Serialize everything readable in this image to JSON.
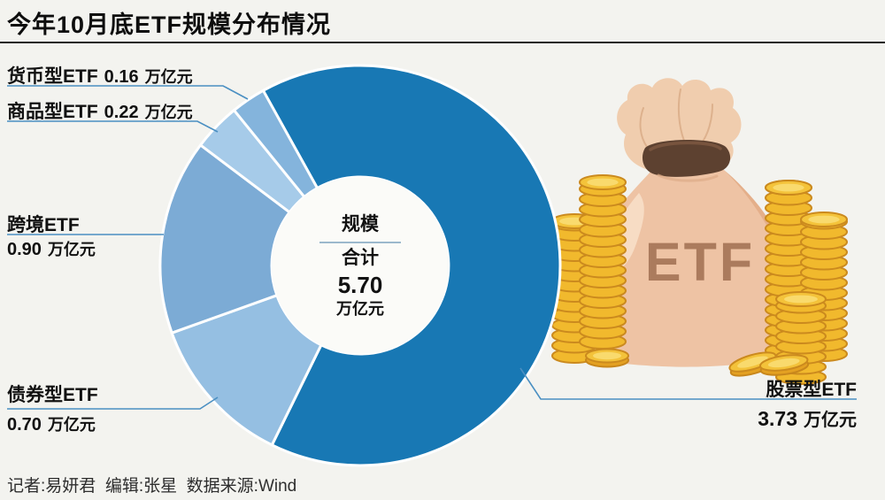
{
  "title": "今年10月底ETF规模分布情况",
  "center_label": {
    "line1": "规模",
    "line2": "合计",
    "value_text": "5.70",
    "unit": "万亿元"
  },
  "bag": {
    "text": "ETF"
  },
  "footer": {
    "credits": "记者:易妍君  编辑:张星  数据来源:Wind"
  },
  "chart_data": {
    "type": "pie",
    "title": "今年10月底ETF规模分布情况",
    "unit": "万亿元",
    "donut": true,
    "direction": "clockwise",
    "start_angle_deg": -29,
    "center_total": {
      "label": "规模合计",
      "value": 5.7,
      "value_text": "5.70",
      "unit": "万亿元"
    },
    "slices": [
      {
        "label": "股票型ETF",
        "value": 3.73,
        "value_text": "3.73",
        "color": "#1878b4"
      },
      {
        "label": "债券型ETF",
        "value": 0.7,
        "value_text": "0.70",
        "color": "#95bfe2"
      },
      {
        "label": "跨境ETF",
        "value": 0.9,
        "value_text": "0.90",
        "color": "#7cabd5"
      },
      {
        "label": "商品型ETF",
        "value": 0.22,
        "value_text": "0.22",
        "color": "#a6cbe9"
      },
      {
        "label": "货币型ETF",
        "value": 0.16,
        "value_text": "0.16",
        "color": "#84b4dc"
      }
    ],
    "leader_line_color": "#4a8fc2",
    "source": "Wind"
  }
}
